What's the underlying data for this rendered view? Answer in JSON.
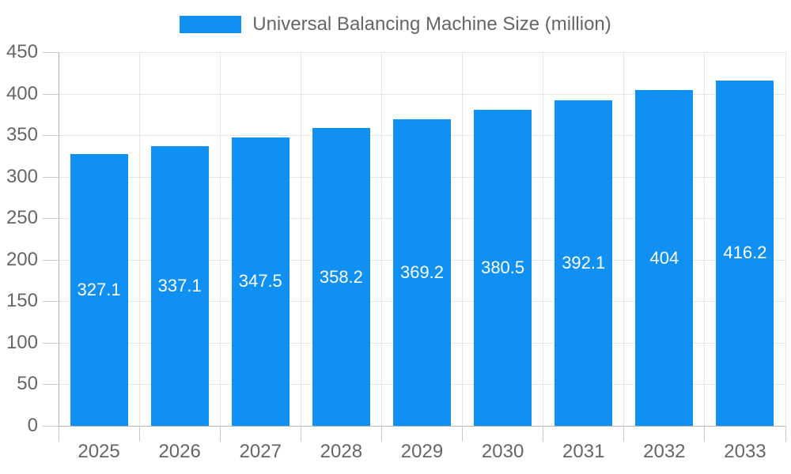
{
  "chart_data": {
    "type": "bar",
    "title": "Universal Balancing Machine Size (million)",
    "categories": [
      "2025",
      "2026",
      "2027",
      "2028",
      "2029",
      "2030",
      "2031",
      "2032",
      "2033"
    ],
    "values": [
      327.1,
      337.1,
      347.5,
      358.2,
      369.2,
      380.5,
      392.1,
      404,
      416.2
    ],
    "value_labels": [
      "327.1",
      "337.1",
      "347.5",
      "358.2",
      "369.2",
      "380.5",
      "392.1",
      "404",
      "416.2"
    ],
    "xlabel": "",
    "ylabel": "",
    "ylim": [
      0,
      450
    ],
    "ytick_step": 50,
    "ytick_labels": [
      "0",
      "50",
      "100",
      "150",
      "200",
      "250",
      "300",
      "350",
      "400",
      "450"
    ],
    "grid": "on",
    "legend_position": "top-center",
    "colors": {
      "bar": "#0f90f2",
      "bar_value_text": "#ffffff",
      "axis_text": "#666666",
      "legend_text": "#666666",
      "gridline": "#e6e6e6",
      "axis_line": "#b5b5b5",
      "tick_mark": "#c9c9c9",
      "background": "#ffffff"
    }
  }
}
